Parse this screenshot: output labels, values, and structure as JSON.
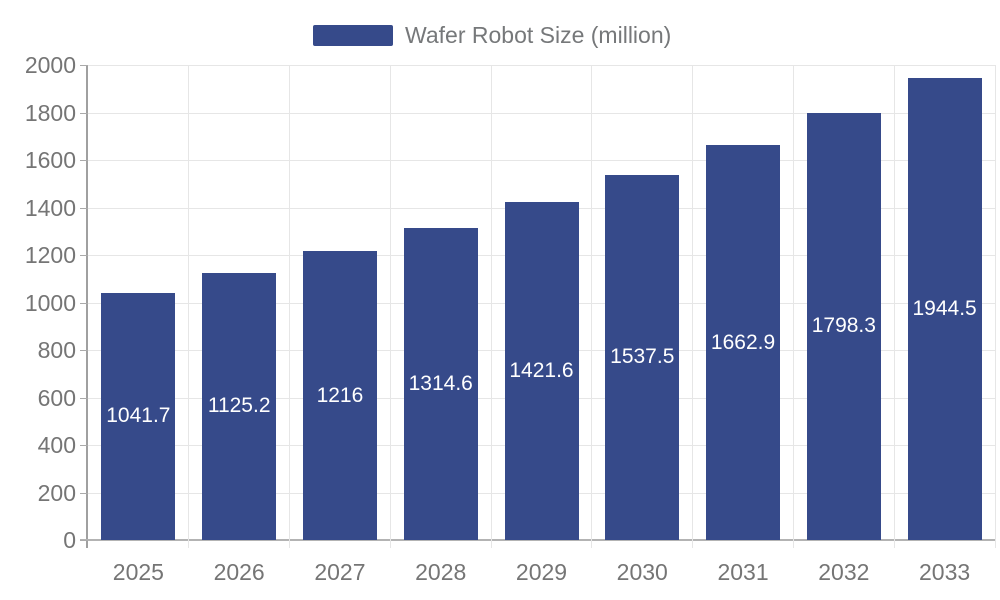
{
  "legend": {
    "label": "Wafer Robot Size (million)"
  },
  "chart_data": {
    "type": "bar",
    "title": "",
    "xlabel": "",
    "ylabel": "",
    "categories": [
      "2025",
      "2026",
      "2027",
      "2028",
      "2029",
      "2030",
      "2031",
      "2032",
      "2033"
    ],
    "series": [
      {
        "name": "Wafer Robot Size (million)",
        "values": [
          1041.7,
          1125.2,
          1216,
          1314.6,
          1421.6,
          1537.5,
          1662.9,
          1798.3,
          1944.5
        ]
      }
    ],
    "bar_value_labels": [
      "1041.7",
      "1125.2",
      "1216",
      "1314.6",
      "1421.6",
      "1537.5",
      "1662.9",
      "1798.3",
      "1944.5"
    ],
    "ylim": [
      0,
      2000
    ],
    "ytick_step": 200,
    "ytick_labels": [
      "0",
      "200",
      "400",
      "600",
      "800",
      "1000",
      "1200",
      "1400",
      "1600",
      "1800",
      "2000"
    ],
    "grid": true,
    "legend_position": "top-center",
    "colors": {
      "bar": "#364a8a",
      "bar_label_text": "#ffffff",
      "gridline": "#e6e6e6",
      "y_axis_line": "#a0a0a0",
      "x_axis_line": "#b3b3b3",
      "tick": "#aaaaaa",
      "tick_label": "#757575",
      "legend_text": "#76787a",
      "background": "#ffffff"
    }
  }
}
